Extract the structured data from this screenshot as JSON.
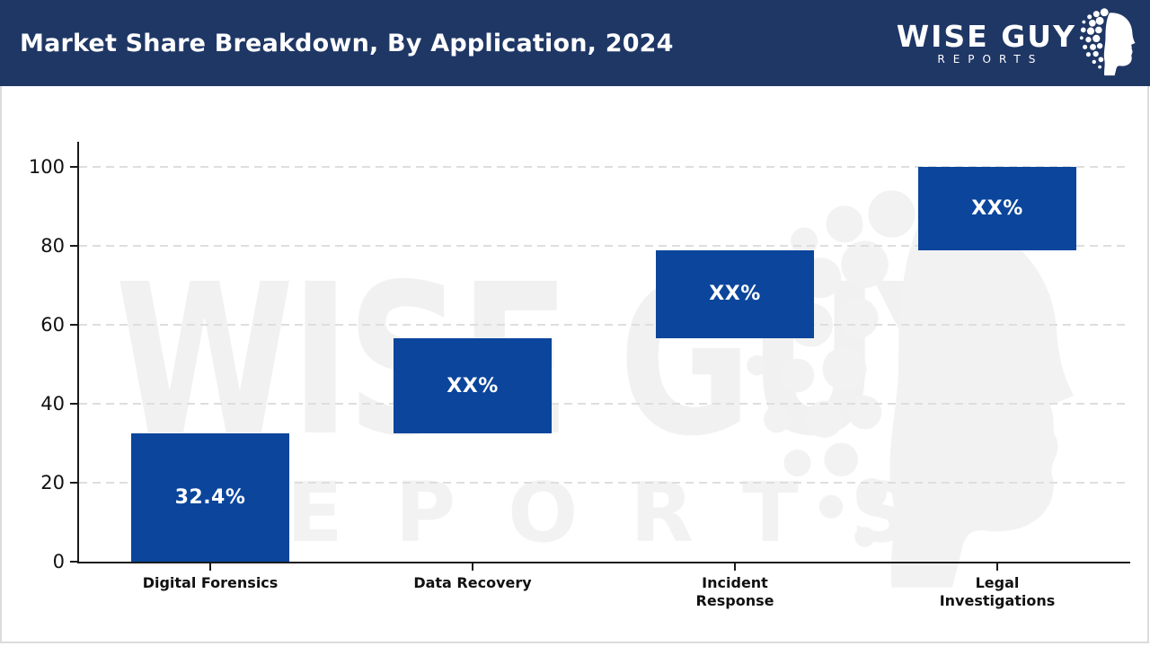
{
  "header": {
    "title": "Market Share Breakdown, By Application, 2024",
    "logo": {
      "line1": "WISE GUY",
      "line2": "REPORTS"
    }
  },
  "watermark": {
    "line1": "WISE GUY",
    "line2": "REPORTS"
  },
  "colors": {
    "header_bg": "#1f3765",
    "bar": "#0b459c",
    "bar_label": "#ffffff",
    "axis": "#1a1a1a",
    "grid": "#dedede",
    "watermark": "#f1f1f1"
  },
  "chart_data": {
    "type": "bar",
    "subtype": "floating-waterfall",
    "title": "Market Share Breakdown, By Application, 2024",
    "xlabel": "",
    "ylabel": "",
    "ylim": [
      0,
      105
    ],
    "y_ticks": [
      0,
      20,
      40,
      60,
      80,
      100
    ],
    "grid": "horizontal dashed",
    "legend": "none",
    "categories": [
      "Digital Forensics",
      "Data Recovery",
      "Incident Response",
      "Legal Investigations"
    ],
    "bars": [
      {
        "category": "Digital Forensics",
        "start": 0,
        "end": 32.4,
        "label": "32.4%"
      },
      {
        "category": "Data Recovery",
        "start": 32.4,
        "end": 56.6,
        "label": "XX%"
      },
      {
        "category": "Incident Response",
        "start": 56.6,
        "end": 78.9,
        "label": "XX%"
      },
      {
        "category": "Legal Investigations",
        "start": 78.9,
        "end": 100,
        "label": "XX%"
      }
    ]
  }
}
